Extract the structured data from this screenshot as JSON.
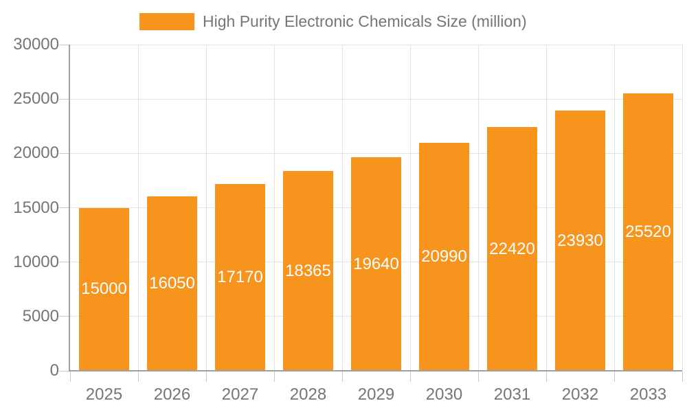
{
  "legend": {
    "label": "High Purity Electronic Chemicals Size (million)",
    "swatch_color": "#F7941E"
  },
  "chart_data": {
    "type": "bar",
    "title": "High Purity Electronic Chemicals Size (million)",
    "categories": [
      "2025",
      "2026",
      "2027",
      "2028",
      "2029",
      "2030",
      "2031",
      "2032",
      "2033"
    ],
    "values": [
      15000,
      16050,
      17170,
      18365,
      19640,
      20990,
      22420,
      23930,
      25520
    ],
    "series": [
      {
        "name": "High Purity Electronic Chemicals Size (million)",
        "values": [
          15000,
          16050,
          17170,
          18365,
          19640,
          20990,
          22420,
          23930,
          25520
        ]
      }
    ],
    "xlabel": "",
    "ylabel": "",
    "ylim": [
      0,
      30000
    ],
    "y_ticks": [
      0,
      5000,
      10000,
      15000,
      20000,
      25000,
      30000
    ],
    "grid": true,
    "legend_position": "top",
    "bar_color": "#F7941E",
    "bar_label_color": "#FFFFFF",
    "axis_color": "#A0A0A0",
    "grid_color": "#E2E2E2",
    "tick_color": "#C8C8C8",
    "tick_label_color": "#757575"
  }
}
